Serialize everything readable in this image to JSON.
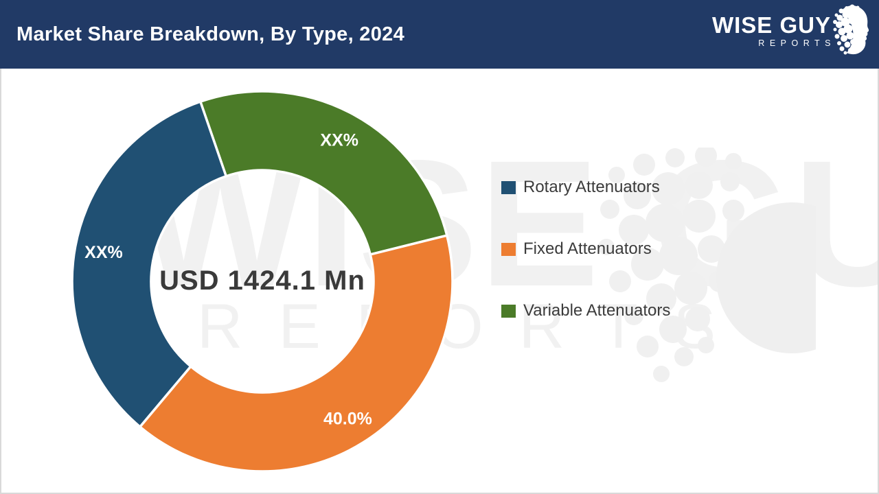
{
  "header": {
    "title": "Market Share Breakdown, By Type, 2024",
    "logo": {
      "wordmark": "WISE GUY",
      "subtext": "REPORTS"
    }
  },
  "watermark": {
    "line1": "WISE GUY",
    "line2": "REPORTS"
  },
  "chart_data": {
    "type": "donut",
    "title": "Market Share Breakdown, By Type, 2024",
    "center_label": "USD 1424.1 Mn",
    "start_angle_deg": -19,
    "legend_position": "right",
    "segments": [
      {
        "name": "Variable Attenuators",
        "label": "XX%",
        "pct": 26.4,
        "color": "#4b7b28"
      },
      {
        "name": "Fixed Attenuators",
        "label": "40.0%",
        "pct": 40.0,
        "color": "#ed7d31"
      },
      {
        "name": "Rotary Attenuators",
        "label": "XX%",
        "pct": 33.6,
        "color": "#205073"
      }
    ]
  },
  "legend": {
    "items": [
      {
        "label": "Rotary Attenuators",
        "color": "#205073"
      },
      {
        "label": "Fixed Attenuators",
        "color": "#ed7d31"
      },
      {
        "label": "Variable Attenuators",
        "color": "#4b7b28"
      }
    ]
  },
  "colors": {
    "header_bg": "#213a66",
    "center_text": "#3a3a3a",
    "legend_text": "#3b3b3b",
    "border": "#d9d9d9",
    "watermark": "#f1f1f1"
  }
}
